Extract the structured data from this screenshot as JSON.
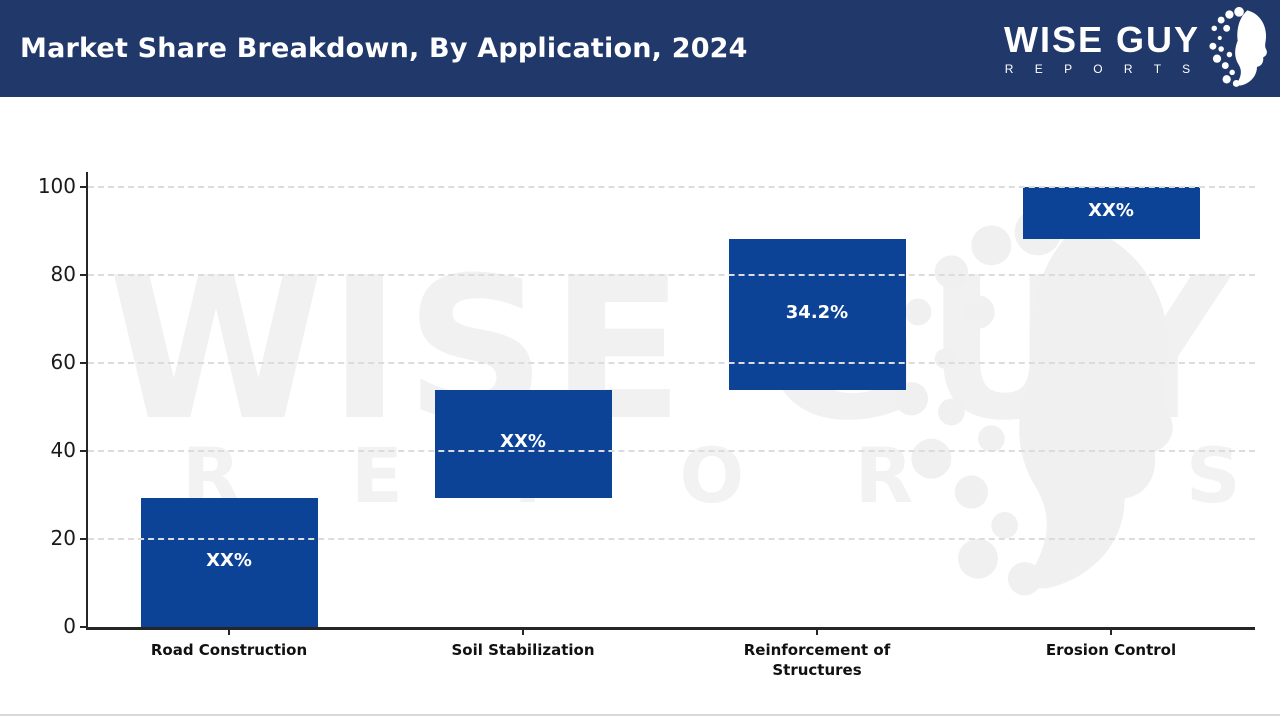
{
  "header": {
    "title": "Market Share Breakdown, By Application, 2024",
    "bg_color": "#21386b",
    "logo": {
      "wordmark": "WISE GUY",
      "sub": "R E P O R T S"
    }
  },
  "watermark": {
    "line1": "WISE GUY",
    "line2": "R E P O R T S"
  },
  "chart_data": {
    "type": "bar",
    "subtype": "floating-waterfall",
    "title": "Market Share Breakdown, By Application, 2024",
    "categories": [
      "Road Construction",
      "Soil Stabilization",
      "Reinforcement of Structures",
      "Erosion Control"
    ],
    "series": [
      {
        "name": "Market Share",
        "segments": [
          {
            "category": "Road Construction",
            "start": 0,
            "end": 29.3,
            "label": "XX%"
          },
          {
            "category": "Soil Stabilization",
            "start": 29.3,
            "end": 53.9,
            "label": "XX%"
          },
          {
            "category": "Reinforcement of Structures",
            "start": 53.9,
            "end": 88.1,
            "label": "34.2%"
          },
          {
            "category": "Erosion Control",
            "start": 88.1,
            "end": 100,
            "label": "XX%"
          }
        ]
      }
    ],
    "ylim": [
      0,
      100
    ],
    "yticks": [
      0,
      20,
      40,
      60,
      80,
      100
    ],
    "xlabel": "",
    "ylabel": "",
    "grid": "horizontal-dashed",
    "legend": "none",
    "bar_color": "#0d4396",
    "bar_label_color": "#ffffff",
    "axis_color": "#262626",
    "grid_color": "#dcdcdc"
  }
}
